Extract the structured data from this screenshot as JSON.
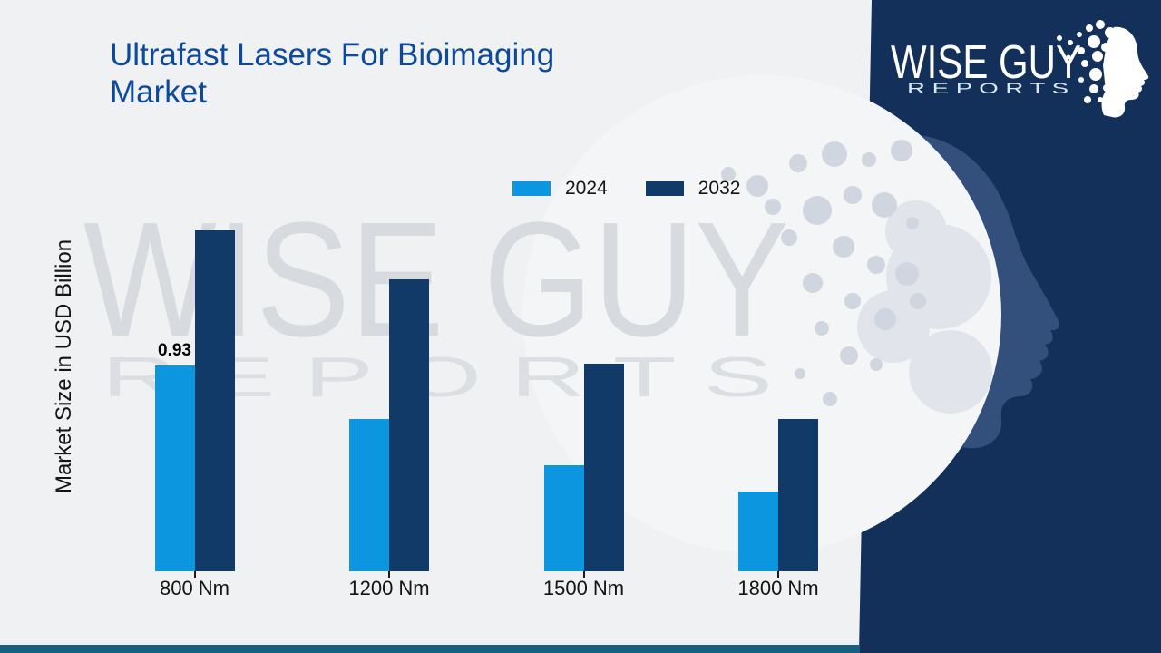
{
  "page": {
    "background": "#f0f1f2",
    "bottom_strip_color": "#176080"
  },
  "header": {
    "title_line1": "Ultrafast Lasers For Bioimaging",
    "title_line2": "Market",
    "title_color": "#0d4a9c"
  },
  "brand": {
    "logo_text": "WISE GUY",
    "logo_subtext": "R E P O R T S",
    "watermark_text": "WISE GUY",
    "watermark_subtext": "R E P O R T S",
    "panel_color": "#13305a"
  },
  "chart_data": {
    "type": "bar",
    "title": "Ultrafast Lasers For Bioimaging Market",
    "xlabel": "",
    "ylabel": "Market Size in USD Billion",
    "categories": [
      "800 Nm",
      "1200 Nm",
      "1500 Nm",
      "1800 Nm"
    ],
    "series": [
      {
        "name": "2024",
        "color": "#0c96e0",
        "values": [
          0.93,
          0.69,
          0.48,
          0.36
        ]
      },
      {
        "name": "2032",
        "color": "#123a68",
        "values": [
          1.54,
          1.32,
          0.94,
          0.69
        ]
      }
    ],
    "data_labels": [
      {
        "series": "2024",
        "category": "800 Nm",
        "text": "0.93"
      }
    ],
    "ylim": [
      0,
      1.65
    ],
    "grid": false,
    "axis_line": false,
    "legend_position": "top"
  }
}
